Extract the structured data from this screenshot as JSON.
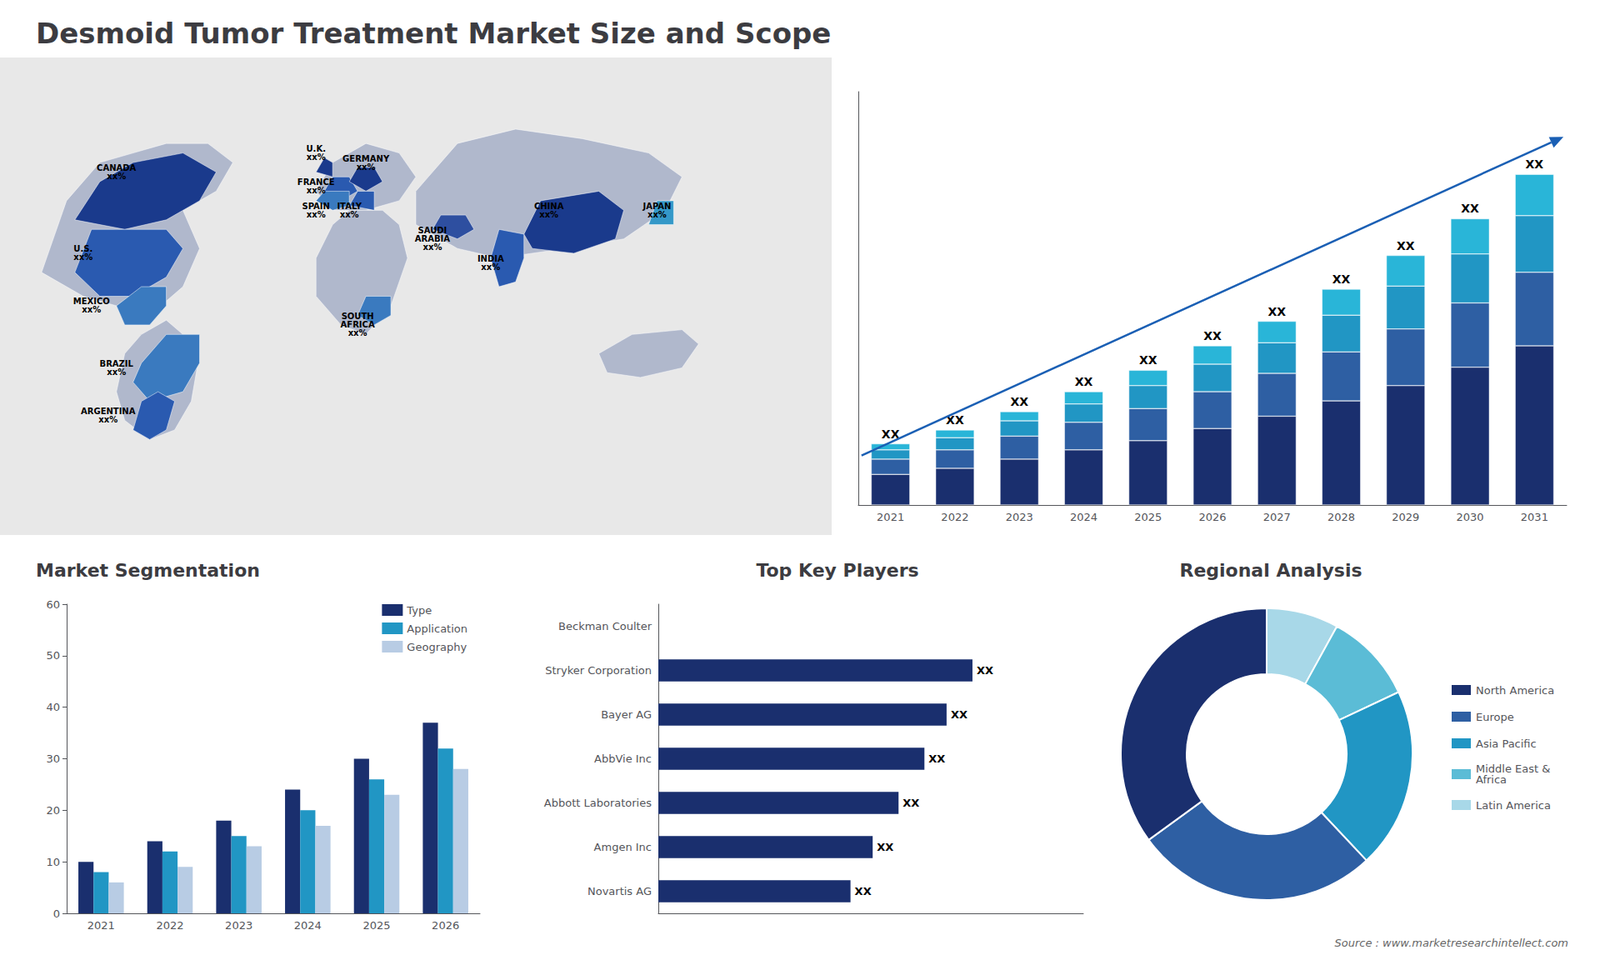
{
  "chart_data": [
    {
      "type": "map",
      "annotations": [
        "CANADA\nxx%",
        "U.S.\nxx%",
        "MEXICO\nxx%",
        "BRAZIL\nxx%",
        "ARGENTINA\nxx%",
        "U.K.\nxx%",
        "FRANCE\nxx%",
        "SPAIN\nxx%",
        "GERMANY\nxx%",
        "ITALY\nxx%",
        "SAUDI\nARABIA\nxx%",
        "SOUTH\nAFRICA\nxx%",
        "CHINA\nxx%",
        "INDIA\nxx%",
        "JAPAN\nxx%"
      ]
    },
    {
      "type": "bar",
      "title": "Desmoid Tumor Treatment Market Size and Scope",
      "stacked": true,
      "categories": [
        "2021",
        "2022",
        "2023",
        "2024",
        "2025",
        "2026",
        "2027",
        "2028",
        "2029",
        "2030",
        "2031"
      ],
      "series": [
        {
          "color": "#1a2f6e",
          "values": [
            1.0,
            1.2,
            1.5,
            1.8,
            2.1,
            2.5,
            2.9,
            3.4,
            3.9,
            4.5,
            5.2
          ]
        },
        {
          "color": "#2e5fa3",
          "values": [
            0.5,
            0.6,
            0.75,
            0.9,
            1.05,
            1.2,
            1.4,
            1.6,
            1.85,
            2.1,
            2.4
          ]
        },
        {
          "color": "#2196c4",
          "values": [
            0.3,
            0.4,
            0.5,
            0.6,
            0.75,
            0.9,
            1.0,
            1.2,
            1.4,
            1.6,
            1.85
          ]
        },
        {
          "color": "#29b5d8",
          "values": [
            0.2,
            0.25,
            0.3,
            0.4,
            0.5,
            0.6,
            0.7,
            0.85,
            1.0,
            1.15,
            1.35
          ]
        }
      ],
      "annotations": [
        "XX",
        "XX",
        "XX",
        "XX",
        "XX",
        "XX",
        "XX",
        "XX",
        "XX",
        "XX",
        "XX"
      ],
      "ylim": [
        0,
        13.5
      ],
      "tick_labels": "x",
      "grid": false
    },
    {
      "type": "bar",
      "title": "Market Segmentation",
      "categories": [
        "2021",
        "2022",
        "2023",
        "2024",
        "2025",
        "2026"
      ],
      "series": [
        {
          "name": "Type",
          "color": "#1a2f6e",
          "values": [
            10,
            14,
            18,
            24,
            30,
            37
          ]
        },
        {
          "name": "Application",
          "color": "#2196c4",
          "values": [
            8,
            12,
            15,
            20,
            26,
            32
          ]
        },
        {
          "name": "Geography",
          "color": "#b8cce4",
          "values": [
            6,
            9,
            13,
            17,
            23,
            28
          ]
        }
      ],
      "ylim": [
        0,
        60
      ],
      "yticks": [
        0,
        10,
        20,
        30,
        40,
        50,
        60
      ],
      "legend": "upper right",
      "grid": false
    },
    {
      "type": "bar",
      "title": "Top Key Players",
      "orientation": "horizontal",
      "categories": [
        "Beckman Coulter",
        "Stryker Corporation",
        "Bayer AG",
        "AbbVie Inc",
        "Abbott Laboratories",
        "Amgen Inc",
        "Novartis AG"
      ],
      "values": [
        0,
        0.85,
        0.78,
        0.72,
        0.65,
        0.58,
        0.52
      ],
      "value_labels": [
        null,
        "XX",
        "XX",
        "XX",
        "XX",
        "XX",
        "XX"
      ],
      "color": "#1a2f6e",
      "xlim": [
        0,
        1.15
      ],
      "tick_labels": "y",
      "grid": false
    },
    {
      "type": "pie",
      "title": "Regional Analysis",
      "categories": [
        "Latin America",
        "Middle East &\nAfrica",
        "Asia Pacific",
        "Europe",
        "North America"
      ],
      "values": [
        8,
        10,
        20,
        27,
        35
      ],
      "colors": [
        "#a8d8e8",
        "#5bbcd6",
        "#2196c4",
        "#2e5fa3",
        "#1a2f6e"
      ],
      "legend": "right",
      "annotations": [
        "Source : www.marketresearchintellect.com"
      ]
    }
  ]
}
